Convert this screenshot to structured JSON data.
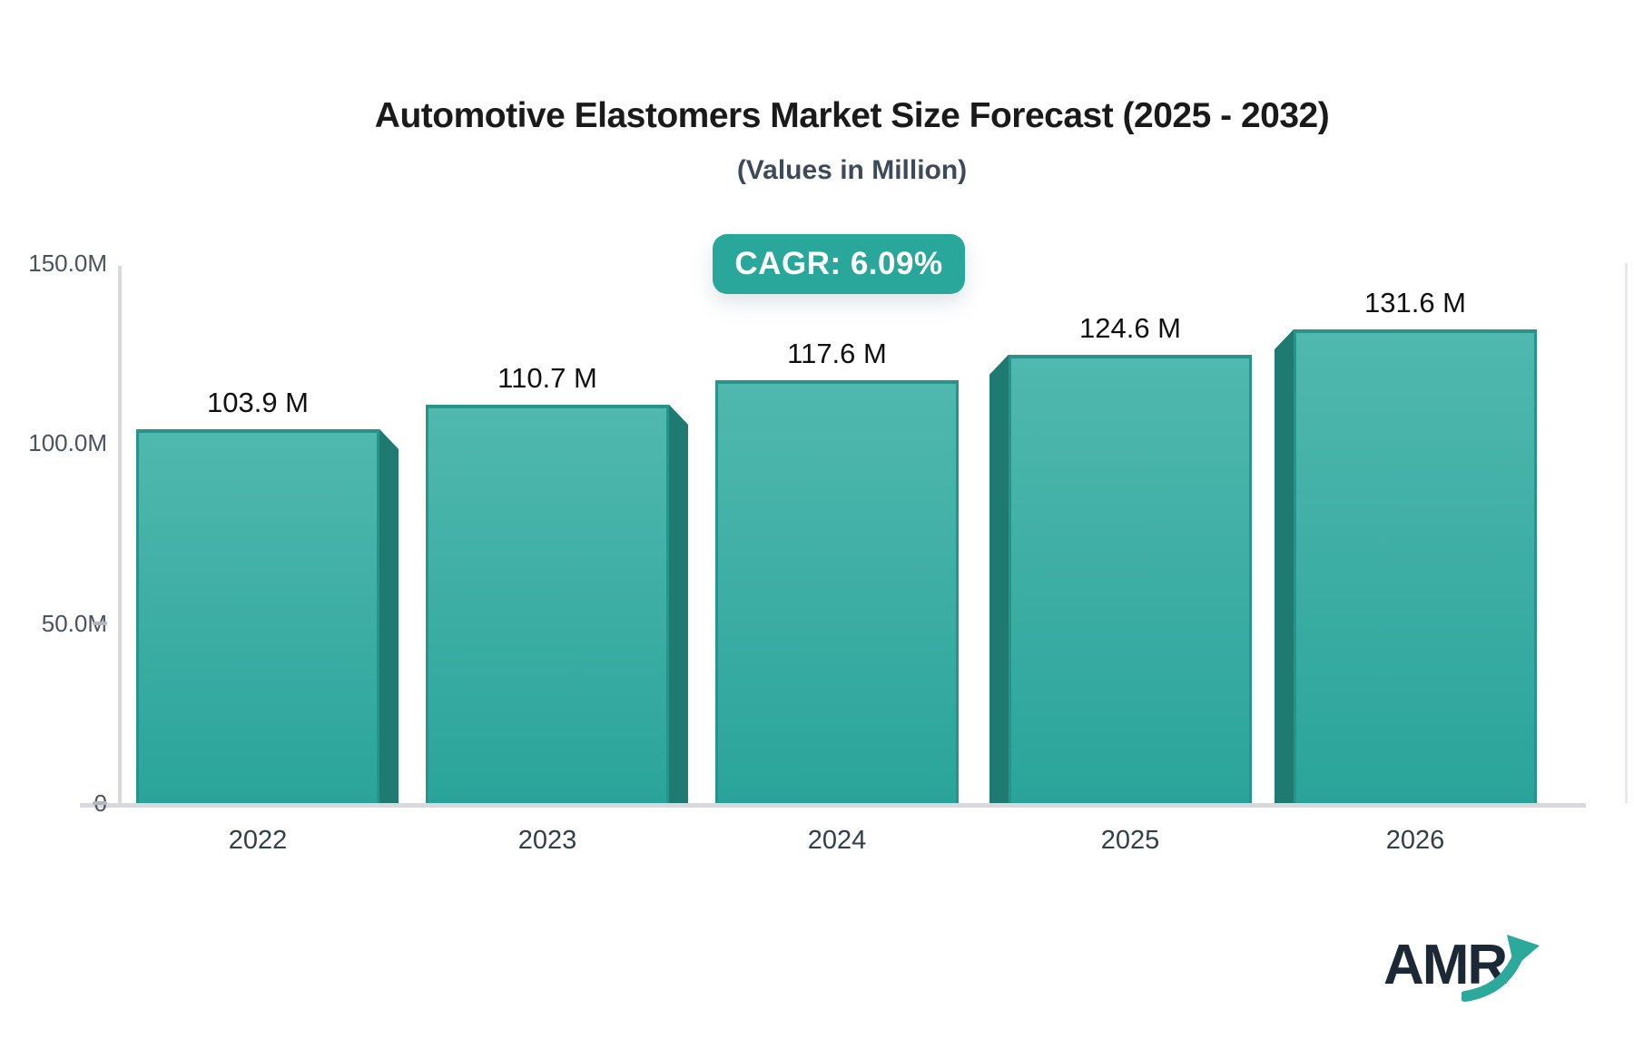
{
  "title": "Automotive Elastomers Market Size Forecast (2025 - 2032)",
  "subtitle": "(Values in Million)",
  "cagr_badge": "CAGR: 6.09%",
  "logo": {
    "text": "AMR"
  },
  "colors": {
    "bar_face_top": "#50b8ae",
    "bar_face_bottom": "#2aa49a",
    "bar_edge": "#26948a",
    "bar_side_panel": "#1f7b71",
    "badge_background": "#2aa79b",
    "badge_text": "#ffffff",
    "title_text": "#1a1a1a",
    "subtitle_text": "#3d4a59",
    "axis_label": "#4a5260",
    "category_label": "#323e4c",
    "value_label": "#101010",
    "axis_line": "#d7d9de",
    "logo_navy": "#1b2836",
    "logo_teal": "#2da99b"
  },
  "chart_data": {
    "type": "bar",
    "title": "Automotive Elastomers Market Size Forecast (2025 - 2032)",
    "subtitle": "(Values in Million)",
    "unit": "Million",
    "cagr": "6.09%",
    "categories": [
      "2022",
      "2023",
      "2024",
      "2025",
      "2026"
    ],
    "values": [
      103.9,
      110.7,
      117.6,
      124.6,
      131.6
    ],
    "value_labels": [
      "103.9 M",
      "110.7 M",
      "117.6 M",
      "124.6 M",
      "131.6 M"
    ],
    "ylim": [
      0,
      150
    ],
    "y_ticks": [
      {
        "label": "150.0M",
        "value": 150,
        "tick_mark": false
      },
      {
        "label": "100.0M",
        "value": 100,
        "tick_mark": false
      },
      {
        "label": "50.0M",
        "value": 50,
        "tick_mark": true
      },
      {
        "label": "0",
        "value": 0,
        "tick_mark": true
      }
    ],
    "grid": false,
    "legend": false,
    "bar_style": "pseudo-3d"
  }
}
